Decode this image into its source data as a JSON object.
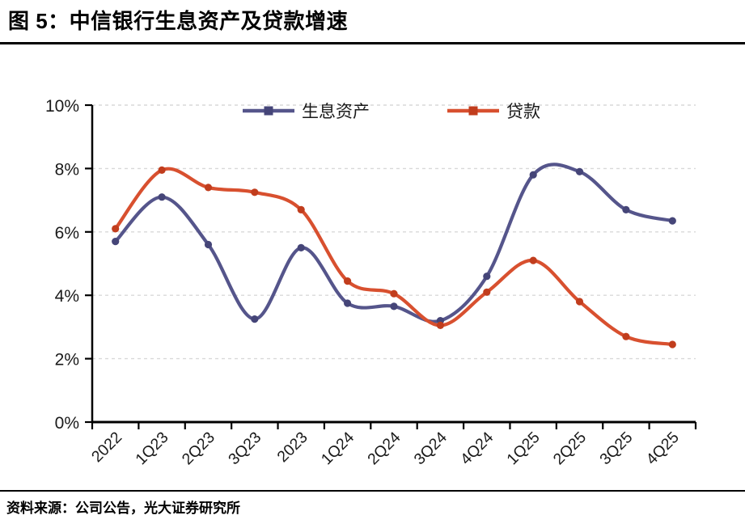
{
  "header": {
    "title": "图 5：中信银行生息资产及贷款增速"
  },
  "footer": {
    "source": "资料来源：公司公告，光大证券研究所"
  },
  "colors": {
    "axis": "#000000",
    "gridline": "#d9d9d9",
    "text": "#1a1a1a",
    "rule": "#000000",
    "earning_assets_line": "#55558b",
    "earning_assets_marker": "#454578",
    "loans_line": "#d8502f",
    "loans_marker": "#c13d1d"
  },
  "chart_data": {
    "type": "line",
    "smooth": true,
    "title": "中信银行生息资产及贷款增速",
    "categories": [
      "2022",
      "1Q23",
      "2Q23",
      "3Q23",
      "2023",
      "1Q24",
      "2Q24",
      "3Q24",
      "4Q24",
      "1Q25",
      "2Q25",
      "3Q25",
      "4Q25"
    ],
    "series": [
      {
        "key": "earning-assets",
        "name": "生息资产",
        "color": "#55558b",
        "marker_color": "#454578",
        "values": [
          5.7,
          7.1,
          5.6,
          3.25,
          5.5,
          3.75,
          3.65,
          3.2,
          4.6,
          7.8,
          7.9,
          6.7,
          6.35
        ]
      },
      {
        "key": "loans",
        "name": "贷款",
        "color": "#d8502f",
        "marker_color": "#c13d1d",
        "values": [
          6.1,
          7.95,
          7.4,
          7.25,
          6.7,
          4.45,
          4.05,
          3.05,
          4.1,
          5.1,
          3.8,
          2.7,
          2.45
        ]
      }
    ],
    "xlabel": "",
    "ylabel": "",
    "ylim": [
      0,
      10
    ],
    "ytick_step": 2,
    "ytick_labels": [
      "0%",
      "2%",
      "4%",
      "6%",
      "8%",
      "10%"
    ],
    "grid": "horizontal-dashed",
    "legend_position": "top-center"
  }
}
